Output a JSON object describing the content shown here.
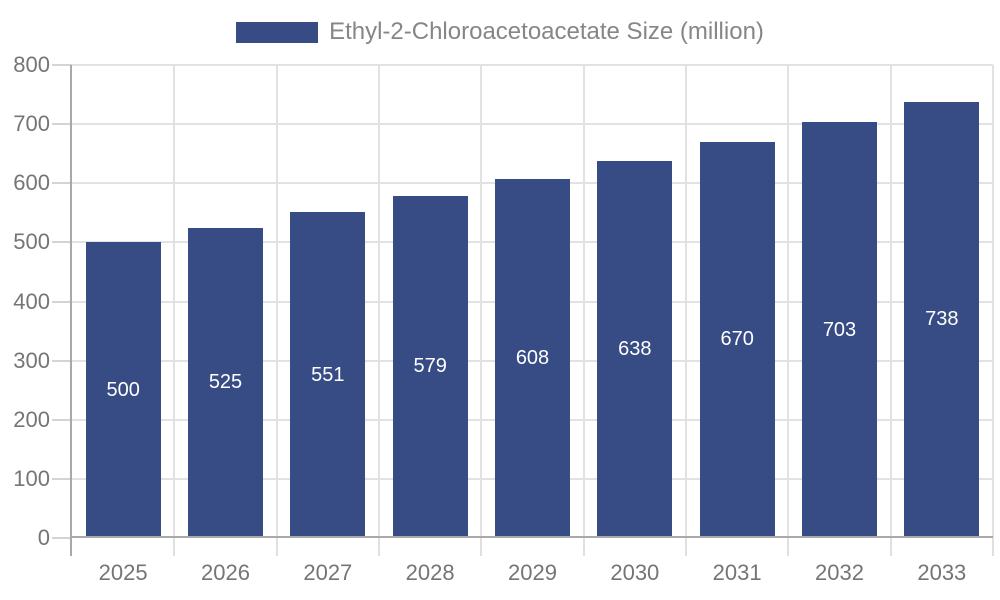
{
  "chart_data": {
    "type": "bar",
    "title": "",
    "xlabel": "",
    "ylabel": "",
    "categories": [
      "2025",
      "2026",
      "2027",
      "2028",
      "2029",
      "2030",
      "2031",
      "2032",
      "2033"
    ],
    "series": [
      {
        "name": "Ethyl-2-Chloroacetoacetate Size (million)",
        "values": [
          500,
          525,
          551,
          579,
          608,
          638,
          670,
          703,
          738
        ]
      }
    ],
    "ylim": [
      0,
      800
    ],
    "ytick_step": 100,
    "ytick_labels": [
      "0",
      "100",
      "200",
      "300",
      "400",
      "500",
      "600",
      "700",
      "800"
    ],
    "grid": true,
    "legend_position": "top",
    "colors": {
      "bar": "#374b84",
      "bar_value_label": "#ffffff",
      "gridline": "#e2e2e2",
      "axis_line": "#a9a9a9",
      "y_tick": "#d4d4d4",
      "x_tick": "#e0e0e0",
      "axis_label_text": "#757575",
      "legend_text": "#868686",
      "background": "#ffffff"
    }
  }
}
